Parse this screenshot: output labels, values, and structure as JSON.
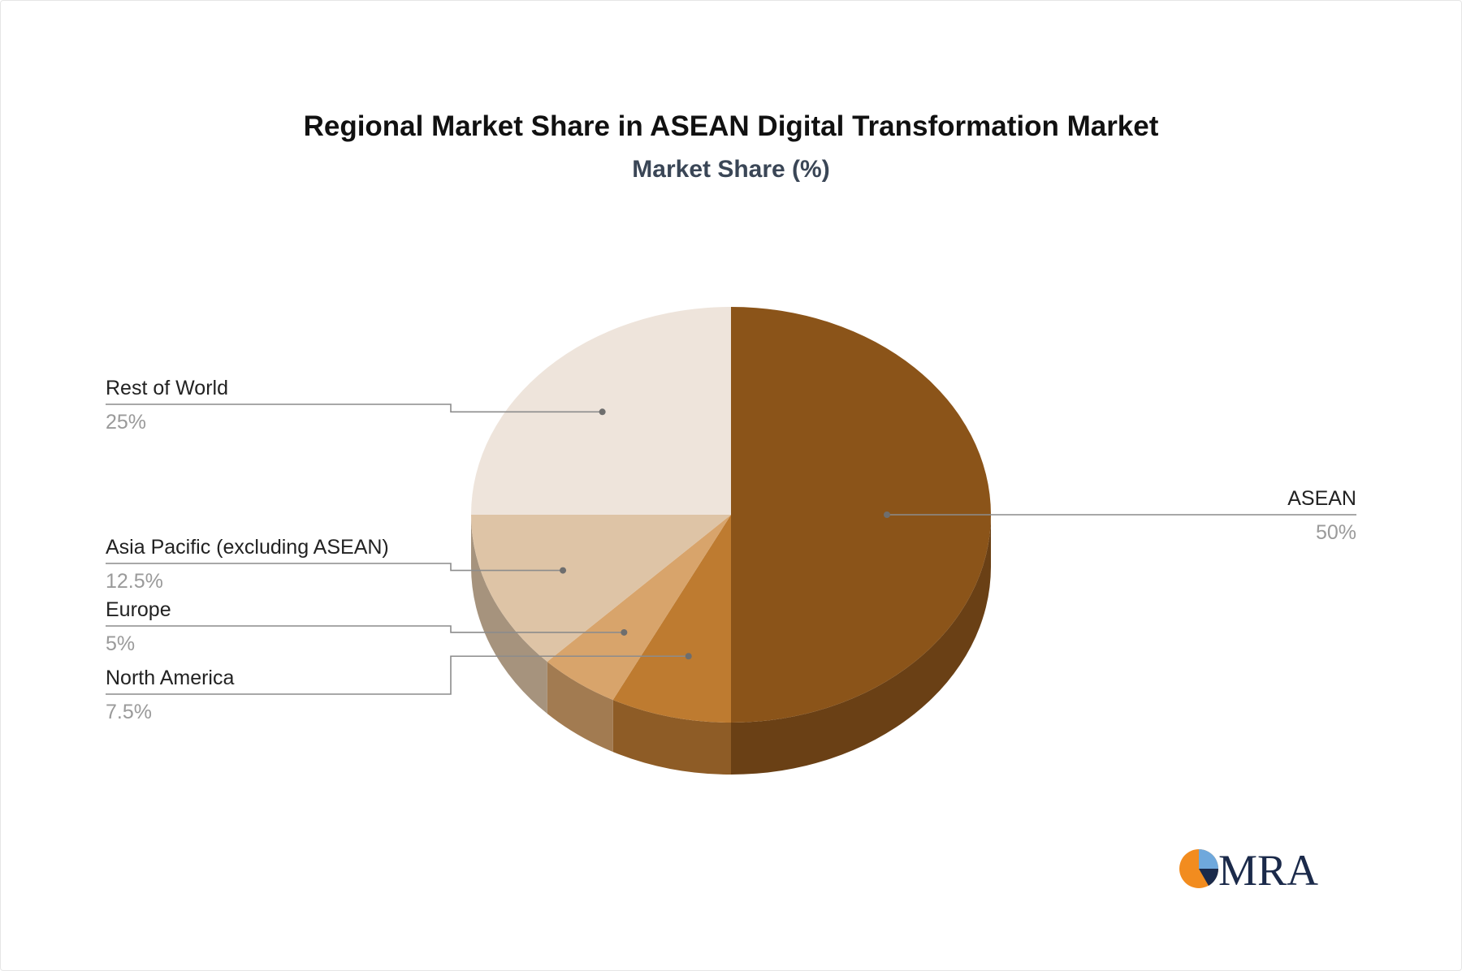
{
  "chart_data": {
    "type": "pie",
    "title": "Regional Market Share in ASEAN Digital Transformation Market",
    "subtitle": "Market Share (%)",
    "slices": [
      {
        "label": "ASEAN",
        "value": 50,
        "value_label": "50%",
        "color": "#8B5419",
        "side_color": "#6A4015"
      },
      {
        "label": "North America",
        "value": 7.5,
        "value_label": "7.5%",
        "color": "#BE7B30",
        "side_color": "#8E5C26"
      },
      {
        "label": "Europe",
        "value": 5,
        "value_label": "5%",
        "color": "#D8A46B",
        "side_color": "#A27B51"
      },
      {
        "label": "Asia Pacific (excluding ASEAN)",
        "value": 12.5,
        "value_label": "12.5%",
        "color": "#DEC4A6",
        "side_color": "#A6937D"
      },
      {
        "label": "Rest of World",
        "value": 25,
        "value_label": "25%",
        "color": "#EEE4DB",
        "side_color": "#B3ABA4"
      }
    ]
  },
  "logo": {
    "text": "MRA",
    "colors": {
      "orange": "#F28C1F",
      "navy": "#1B2A4A",
      "light_blue": "#6FA8DC"
    }
  }
}
